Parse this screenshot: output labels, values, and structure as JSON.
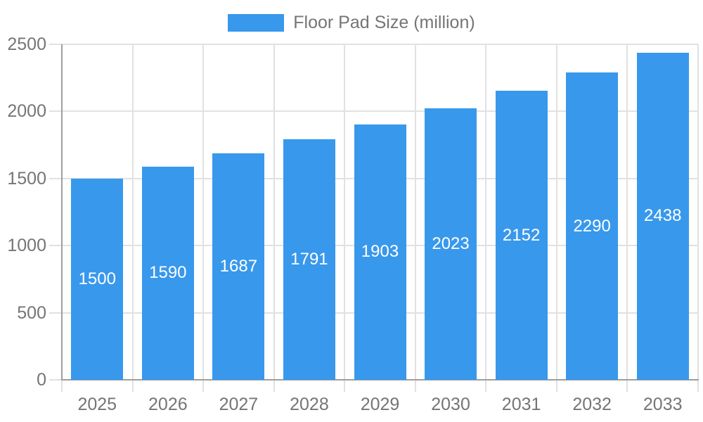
{
  "chart_data": {
    "type": "bar",
    "title": "",
    "legend": {
      "label": "Floor Pad Size (million)",
      "position": "top"
    },
    "categories": [
      "2025",
      "2026",
      "2027",
      "2028",
      "2029",
      "2030",
      "2031",
      "2032",
      "2033"
    ],
    "series": [
      {
        "name": "Floor Pad Size (million)",
        "values": [
          1500,
          1590,
          1687,
          1791,
          1903,
          2023,
          2152,
          2290,
          2438
        ]
      }
    ],
    "xlabel": "",
    "ylabel": "",
    "ylim": [
      0,
      2500
    ],
    "yticks": [
      0,
      500,
      1000,
      1500,
      2000,
      2500
    ],
    "grid": true,
    "value_labels_position": "center-of-bar"
  },
  "colors": {
    "bar": "#3898ec",
    "gridline": "#e1e1e1",
    "axis_line": "#9e9e9e",
    "axis_text": "#757575",
    "bar_label_text": "#ffffff",
    "background": "#ffffff"
  }
}
